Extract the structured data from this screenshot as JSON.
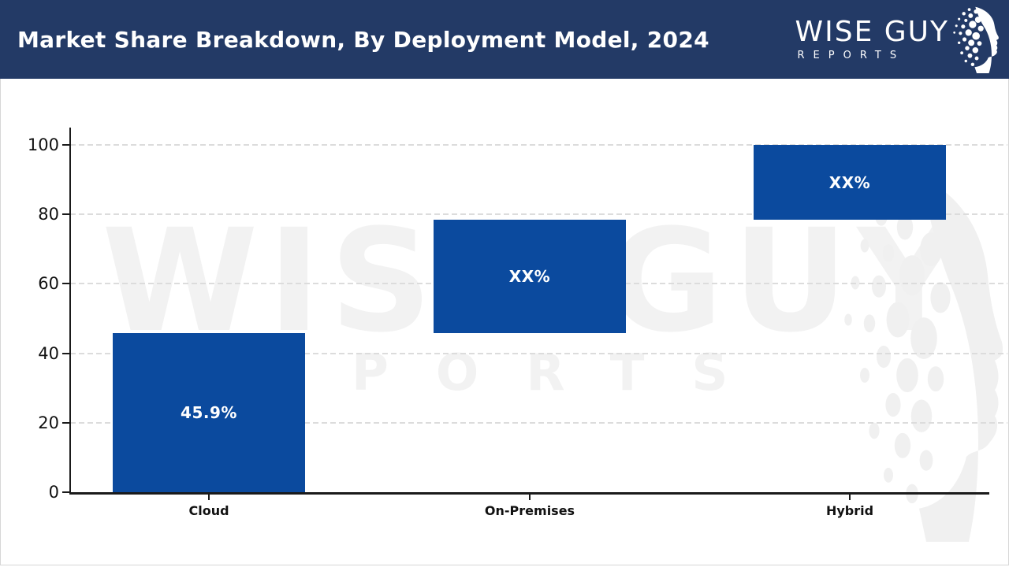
{
  "header": {
    "title": "Market Share Breakdown, By Deployment Model, 2024",
    "logo": {
      "name": "WISE GUY",
      "sub": "REPORTS"
    }
  },
  "watermark": {
    "line1": "WISE GUY",
    "line2": "REPORTS"
  },
  "colors": {
    "header_bg": "#233a66",
    "bar": "#0b4a9e",
    "bar_label": "#ffffff",
    "grid": "#dcdcdc",
    "axis": "#1a1a1a",
    "watermark": "#f2f2f2"
  },
  "chart_data": {
    "type": "bar",
    "subtype": "floating-segment-waterfall",
    "title": "Market Share Breakdown, By Deployment Model, 2024",
    "xlabel": "",
    "ylabel": "",
    "categories": [
      "Cloud",
      "On-Premises",
      "Hybrid"
    ],
    "segments": [
      {
        "category": "Cloud",
        "start": 0,
        "end": 45.9,
        "label": "45.9%"
      },
      {
        "category": "On-Premises",
        "start": 45.9,
        "end": 78.4,
        "label": "XX%"
      },
      {
        "category": "Hybrid",
        "start": 78.4,
        "end": 100,
        "label": "XX%"
      }
    ],
    "ylim": [
      0,
      100
    ],
    "yticks": [
      0,
      20,
      40,
      60,
      80,
      100
    ],
    "grid": "horizontal-dashed",
    "legend": "none",
    "bar_color": "#0b4a9e"
  }
}
